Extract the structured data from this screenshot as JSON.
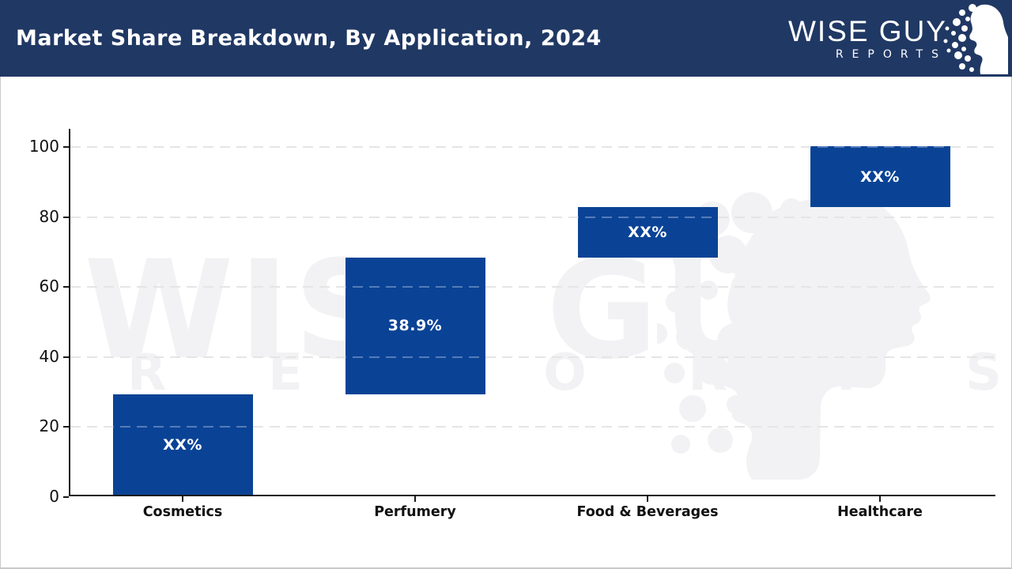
{
  "header": {
    "title": "Market Share Breakdown, By Application, 2024",
    "logo": {
      "line1": "WISE GUY",
      "line2": "REPORTS"
    }
  },
  "watermark": {
    "line1": "WISE GUY",
    "line2": "REPORTS"
  },
  "chart_data": {
    "type": "bar",
    "subtype": "stacked-step-waterfall",
    "title": "Market Share Breakdown, By Application, 2024",
    "categories": [
      "Cosmetics",
      "Perfumery",
      "Food & Beverages",
      "Healthcare"
    ],
    "segments": [
      {
        "category": "Cosmetics",
        "start": 0,
        "end": 29.2,
        "value_label": "XX%"
      },
      {
        "category": "Perfumery",
        "start": 29.2,
        "end": 68.1,
        "value_label": "38.9%"
      },
      {
        "category": "Food & Beverages",
        "start": 68.1,
        "end": 82.6,
        "value_label": "XX%"
      },
      {
        "category": "Healthcare",
        "start": 82.6,
        "end": 100,
        "value_label": "XX%"
      }
    ],
    "yticks": [
      0,
      20,
      40,
      60,
      80,
      100
    ],
    "ylim": [
      0,
      105
    ],
    "xlabel": "",
    "ylabel": "",
    "grid": "horizontal-dashed",
    "legend": "none",
    "bar_color": "#0a4396",
    "value_label_color": "#ffffff"
  },
  "colors": {
    "header_bg": "#203864",
    "body_bg": "#ffffff",
    "bar": "#0a4396",
    "axis": "#1a1a1a",
    "gridline": "#dadada",
    "watermark": "#f2f2f4"
  }
}
